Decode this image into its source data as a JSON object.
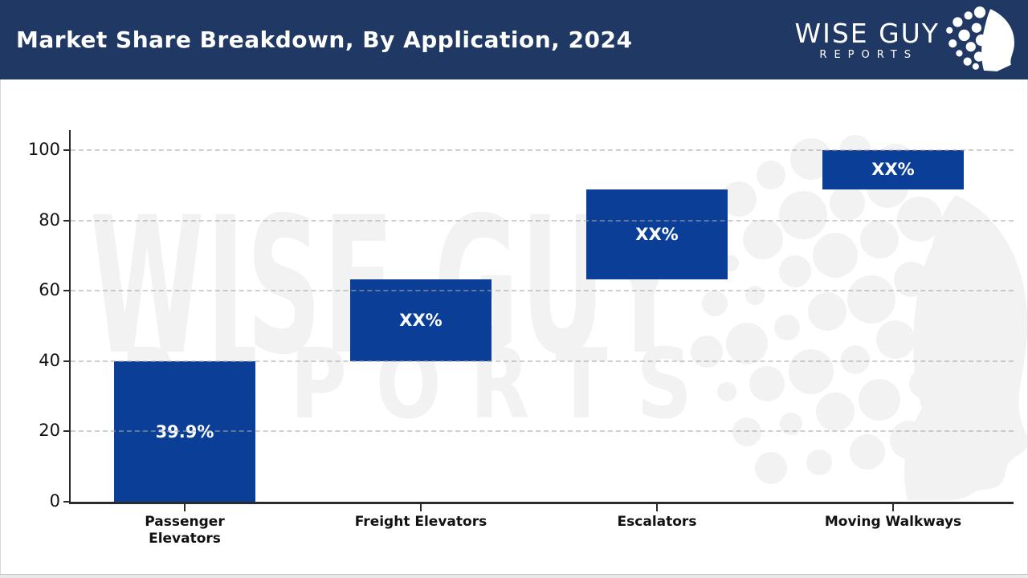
{
  "header": {
    "title": "Market Share Breakdown, By Application, 2024",
    "background_color": "#203864",
    "logo": {
      "line1": "WISE GUY",
      "line2": "REPORTS"
    }
  },
  "watermark": {
    "line1": "WISE GUY",
    "line2": "REPORTS"
  },
  "chart_data": {
    "type": "bar",
    "subtype": "waterfall",
    "title": "Market Share Breakdown, By Application, 2024",
    "categories": [
      "Passenger Elevators",
      "Freight Elevators",
      "Escalators",
      "Moving Walkways"
    ],
    "segments": [
      {
        "label": "Passenger Elevators",
        "label_display": "Passenger\nElevators",
        "start": 0,
        "end": 39.9,
        "value_label": "39.9%"
      },
      {
        "label": "Freight Elevators",
        "label_display": "Freight Elevators",
        "start": 39.9,
        "end": 63.3,
        "value_label": "XX%"
      },
      {
        "label": "Escalators",
        "label_display": "Escalators",
        "start": 63.3,
        "end": 88.9,
        "value_label": "XX%"
      },
      {
        "label": "Moving Walkways",
        "label_display": "Moving Walkways",
        "start": 88.9,
        "end": 100,
        "value_label": "XX%"
      }
    ],
    "y_ticks": [
      0,
      20,
      40,
      60,
      80,
      100
    ],
    "ylim": [
      0,
      105
    ],
    "xlabel": "",
    "ylabel": "",
    "grid": "horizontal-dashed-over-bars",
    "bar_color": "#0b3f97",
    "bar_label_color": "#ffffff",
    "legend": "none"
  }
}
